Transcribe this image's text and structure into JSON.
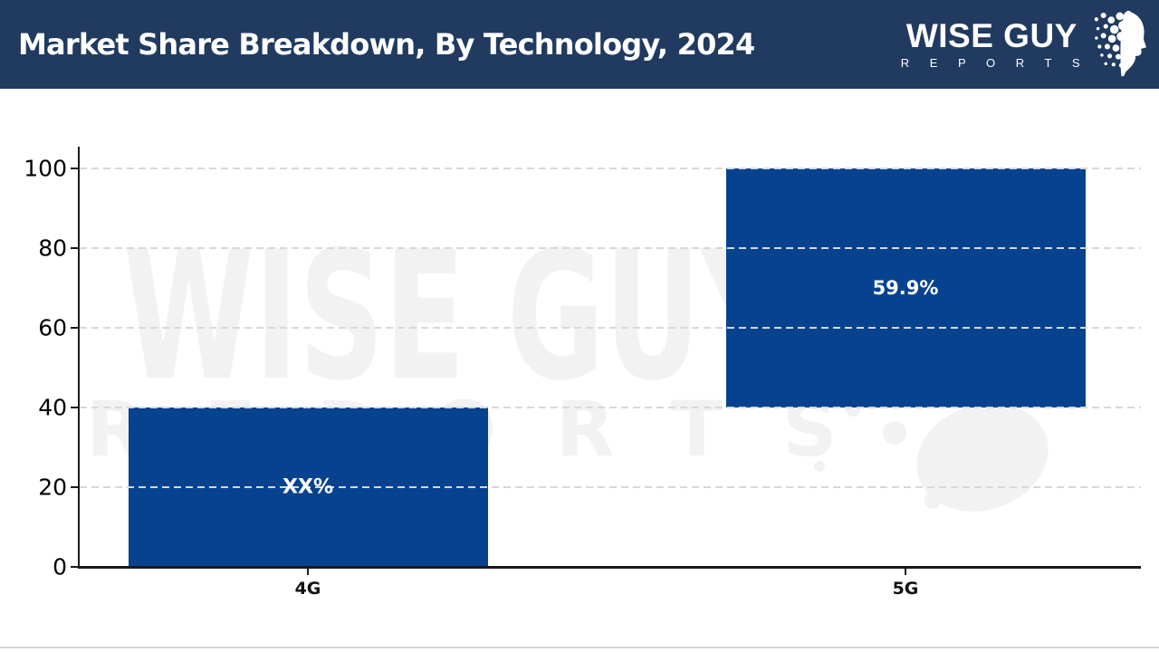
{
  "header": {
    "title": "Market Share Breakdown, By Technology, 2024",
    "logo": {
      "line1": "WISE GUY",
      "line2": "R E P O R T S"
    }
  },
  "watermark": {
    "line1": "WISE GUY",
    "line2": "REPORTS"
  },
  "chart_data": {
    "type": "bar",
    "subtype": "waterfall-style floating bars",
    "title": "Market Share Breakdown, By Technology, 2024",
    "categories": [
      "4G",
      "5G"
    ],
    "bars": [
      {
        "category": "4G",
        "from": 0,
        "to": 40,
        "label": "XX%"
      },
      {
        "category": "5G",
        "from": 40.1,
        "to": 100,
        "label": "59.9%"
      }
    ],
    "yticks": [
      0,
      20,
      40,
      60,
      80,
      100
    ],
    "ylim": [
      0,
      106
    ],
    "xlabel": "",
    "ylabel": "",
    "grid": "horizontal-dashed",
    "legend": "none"
  },
  "colors": {
    "header_bg": "#213a60",
    "bar": "#07428f",
    "grid": "#d8d8d8",
    "axis": "#1a1a1a",
    "watermark": "#f2f2f2",
    "title_text": "#ffffff",
    "bar_label_text": "#ffffff"
  }
}
